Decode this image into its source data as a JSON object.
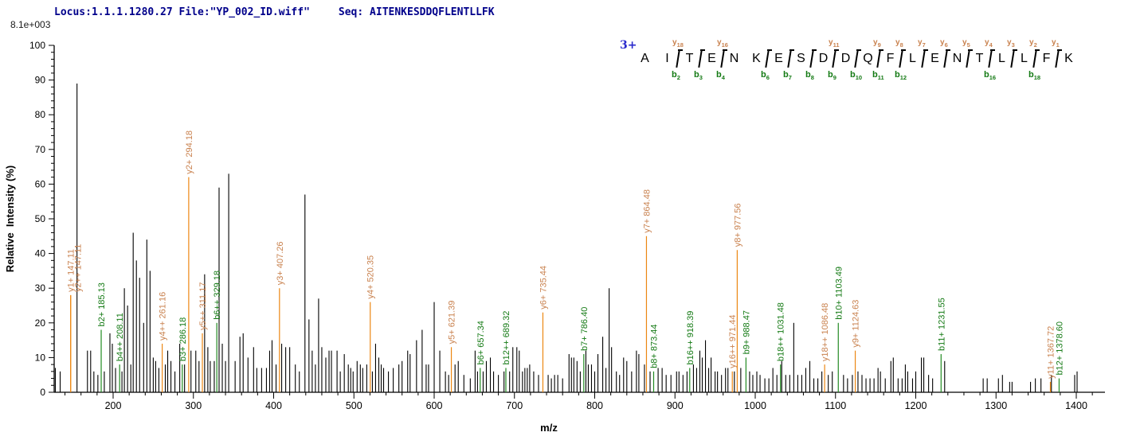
{
  "header": {
    "locus": "Locus:1.1.1.1280.27 File:\"YP_002_ID.wiff\"",
    "seq": "Seq: AITENKESDDQFLENTLLFK",
    "max_intensity": "8.1e+003"
  },
  "colors": {
    "peak_black": "#000000",
    "y_peak": "#ec8713",
    "y_label": "#c9824f",
    "b_peak": "#228b22",
    "b_label": "#147a14",
    "header_text": "#00008b",
    "charge_text": "#2828cc",
    "axis": "#000000"
  },
  "sequence": {
    "charge": "3+",
    "residues": [
      "A",
      "I",
      "T",
      "E",
      "N",
      "K",
      "E",
      "S",
      "D",
      "D",
      "Q",
      "F",
      "L",
      "E",
      "N",
      "T",
      "L",
      "L",
      "F",
      "K"
    ],
    "cuts": [
      {
        "after": 2,
        "y": 18,
        "b": 2
      },
      {
        "after": 3,
        "b": 3
      },
      {
        "after": 4,
        "y": 16,
        "b": 4
      },
      {
        "after": 6,
        "b": 6
      },
      {
        "after": 7,
        "b": 7
      },
      {
        "after": 8,
        "b": 8
      },
      {
        "after": 9,
        "y": 11,
        "b": 9
      },
      {
        "after": 10,
        "b": 10
      },
      {
        "after": 11,
        "y": 9,
        "b": 11
      },
      {
        "after": 12,
        "y": 8,
        "b": 12
      },
      {
        "after": 13,
        "y": 7
      },
      {
        "after": 14,
        "y": 6
      },
      {
        "after": 15,
        "y": 5
      },
      {
        "after": 16,
        "y": 4,
        "b": 16
      },
      {
        "after": 17,
        "y": 3
      },
      {
        "after": 18,
        "y": 2,
        "b": 18
      },
      {
        "after": 19,
        "y": 1
      }
    ]
  },
  "chart_data": {
    "type": "bar",
    "subtype": "ms2-stick-spectrum",
    "xlabel": "m/z",
    "ylabel": "Relative  Intensity (%)",
    "xlim": [
      125,
      1436
    ],
    "ylim": [
      0,
      100
    ],
    "x_major_ticks": [
      200,
      300,
      400,
      500,
      600,
      700,
      800,
      900,
      1000,
      1100,
      1200,
      1300,
      1400
    ],
    "x_minor_step": 20,
    "y_major_ticks": [
      0,
      10,
      20,
      30,
      40,
      50,
      60,
      70,
      80,
      90,
      100
    ],
    "y_minor_step": 2,
    "grid": false,
    "base_peak_intensity_label": "8.1e+003",
    "labeled_peaks": [
      {
        "label": "y1+ 147.11",
        "ion": "y1+",
        "mz": 147.11,
        "h": 28,
        "series": "y"
      },
      {
        "label": "y2++ 147.11",
        "ion": "y2++",
        "mz": 147.11,
        "h": 28,
        "series": "y",
        "label_dx": 9
      },
      {
        "label": "b2+ 185.13",
        "ion": "b2+",
        "mz": 185.13,
        "h": 18,
        "series": "b"
      },
      {
        "label": "b4++ 208.11",
        "ion": "b4++",
        "mz": 208.11,
        "h": 8,
        "series": "b"
      },
      {
        "label": "y4++ 261.16",
        "ion": "y4++",
        "mz": 261.16,
        "h": 14,
        "series": "y"
      },
      {
        "label": "b3+ 286.18",
        "ion": "b3+",
        "mz": 286.18,
        "h": 8,
        "series": "b"
      },
      {
        "label": "y2+ 294.18",
        "ion": "y2+",
        "mz": 294.18,
        "h": 62,
        "series": "y"
      },
      {
        "label": "y5++ 311.17",
        "ion": "y5++",
        "mz": 311.17,
        "h": 17,
        "series": "y"
      },
      {
        "label": "b6++ 329.18",
        "ion": "b6++",
        "mz": 329.18,
        "h": 20,
        "series": "b"
      },
      {
        "label": "y3+ 407.26",
        "ion": "y3+",
        "mz": 407.26,
        "h": 30,
        "series": "y"
      },
      {
        "label": "y4+ 520.35",
        "ion": "y4+",
        "mz": 520.35,
        "h": 26,
        "series": "y"
      },
      {
        "label": "y5+ 621.39",
        "ion": "y5+",
        "mz": 621.39,
        "h": 13,
        "series": "y"
      },
      {
        "label": "b6+ 657.34",
        "ion": "b6+",
        "mz": 657.34,
        "h": 7,
        "series": "b"
      },
      {
        "label": "b12++ 689.32",
        "ion": "b12++",
        "mz": 689.32,
        "h": 7,
        "series": "b"
      },
      {
        "label": "y6+ 735.44",
        "ion": "y6+",
        "mz": 735.44,
        "h": 23,
        "series": "y"
      },
      {
        "label": "b7+ 786.40",
        "ion": "b7+",
        "mz": 786.4,
        "h": 11,
        "series": "b"
      },
      {
        "label": "y7+ 864.48",
        "ion": "y7+",
        "mz": 864.48,
        "h": 45,
        "series": "y"
      },
      {
        "label": "b8+ 873.44",
        "ion": "b8+",
        "mz": 873.44,
        "h": 6,
        "series": "b"
      },
      {
        "label": "b16++ 918.39",
        "ion": "b16++",
        "mz": 918.39,
        "h": 7,
        "series": "b"
      },
      {
        "label": "y16++ 971.44",
        "ion": "y16++",
        "mz": 971.44,
        "h": 6,
        "series": "y"
      },
      {
        "label": "y8+ 977.56",
        "ion": "y8+",
        "mz": 977.56,
        "h": 41,
        "series": "y"
      },
      {
        "label": "b9+ 988.47",
        "ion": "b9+",
        "mz": 988.47,
        "h": 10,
        "series": "b"
      },
      {
        "label": "b18++ 1031.48",
        "ion": "b18++",
        "mz": 1031.48,
        "h": 8,
        "series": "b"
      },
      {
        "label": "y18++ 1086.48",
        "ion": "y18++",
        "mz": 1086.48,
        "h": 8,
        "series": "y"
      },
      {
        "label": "b10+ 1103.49",
        "ion": "b10+",
        "mz": 1103.49,
        "h": 20,
        "series": "b"
      },
      {
        "label": "y9+ 1124.63",
        "ion": "y9+",
        "mz": 1124.63,
        "h": 12,
        "series": "y"
      },
      {
        "label": "b11+ 1231.55",
        "ion": "b11+",
        "mz": 1231.55,
        "h": 11,
        "series": "b"
      },
      {
        "label": "y11+ 1367.72",
        "ion": "y11+",
        "mz": 1367.72,
        "h": 3,
        "series": "y"
      },
      {
        "label": "b12+ 1378.60",
        "ion": "b12+",
        "mz": 1378.6,
        "h": 4,
        "series": "b"
      }
    ],
    "unlabeled_peaks": [
      [
        128,
        7
      ],
      [
        134,
        6
      ],
      [
        155,
        89
      ],
      [
        168,
        12
      ],
      [
        172,
        12
      ],
      [
        176,
        6
      ],
      [
        181,
        5
      ],
      [
        189,
        6
      ],
      [
        196,
        17
      ],
      [
        199,
        14
      ],
      [
        203,
        7
      ],
      [
        211,
        6
      ],
      [
        214,
        30
      ],
      [
        218,
        25
      ],
      [
        222,
        8
      ],
      [
        225,
        46
      ],
      [
        229,
        38
      ],
      [
        233,
        33
      ],
      [
        238,
        20
      ],
      [
        242,
        44
      ],
      [
        246,
        35
      ],
      [
        250,
        10
      ],
      [
        253,
        9
      ],
      [
        257,
        7
      ],
      [
        265,
        8
      ],
      [
        268,
        12
      ],
      [
        272,
        9
      ],
      [
        277,
        6
      ],
      [
        283,
        14
      ],
      [
        289,
        8
      ],
      [
        297,
        12
      ],
      [
        303,
        12
      ],
      [
        307,
        9
      ],
      [
        314,
        34
      ],
      [
        318,
        13
      ],
      [
        321,
        9
      ],
      [
        326,
        9
      ],
      [
        332,
        59
      ],
      [
        336,
        14
      ],
      [
        340,
        9
      ],
      [
        344,
        63
      ],
      [
        352,
        9
      ],
      [
        358,
        16
      ],
      [
        362,
        17
      ],
      [
        368,
        10
      ],
      [
        375,
        13
      ],
      [
        379,
        7
      ],
      [
        385,
        7
      ],
      [
        391,
        7
      ],
      [
        395,
        12
      ],
      [
        398,
        15
      ],
      [
        403,
        8
      ],
      [
        410,
        14
      ],
      [
        415,
        13
      ],
      [
        420,
        13
      ],
      [
        427,
        8
      ],
      [
        432,
        6
      ],
      [
        439,
        57
      ],
      [
        444,
        21
      ],
      [
        448,
        12
      ],
      [
        452,
        8
      ],
      [
        456,
        27
      ],
      [
        460,
        13
      ],
      [
        465,
        10
      ],
      [
        469,
        12
      ],
      [
        472,
        12
      ],
      [
        479,
        12
      ],
      [
        483,
        6
      ],
      [
        488,
        11
      ],
      [
        493,
        8
      ],
      [
        496,
        7
      ],
      [
        499,
        6
      ],
      [
        504,
        9
      ],
      [
        508,
        8
      ],
      [
        511,
        7
      ],
      [
        516,
        8
      ],
      [
        523,
        6
      ],
      [
        527,
        14
      ],
      [
        531,
        10
      ],
      [
        534,
        8
      ],
      [
        537,
        7
      ],
      [
        543,
        6
      ],
      [
        549,
        7
      ],
      [
        556,
        8
      ],
      [
        560,
        9
      ],
      [
        567,
        12
      ],
      [
        570,
        11
      ],
      [
        578,
        15
      ],
      [
        585,
        18
      ],
      [
        590,
        8
      ],
      [
        593,
        8
      ],
      [
        600,
        26
      ],
      [
        607,
        12
      ],
      [
        614,
        6
      ],
      [
        618,
        5
      ],
      [
        626,
        8
      ],
      [
        630,
        9
      ],
      [
        637,
        5
      ],
      [
        645,
        4
      ],
      [
        651,
        12
      ],
      [
        654,
        6
      ],
      [
        661,
        6
      ],
      [
        665,
        9
      ],
      [
        670,
        10
      ],
      [
        674,
        6
      ],
      [
        680,
        5
      ],
      [
        687,
        6
      ],
      [
        694,
        6
      ],
      [
        698,
        13
      ],
      [
        703,
        13
      ],
      [
        706,
        12
      ],
      [
        710,
        6
      ],
      [
        713,
        7
      ],
      [
        716,
        7
      ],
      [
        719,
        8
      ],
      [
        724,
        6
      ],
      [
        730,
        5
      ],
      [
        742,
        5
      ],
      [
        746,
        4
      ],
      [
        750,
        5
      ],
      [
        754,
        5
      ],
      [
        760,
        4
      ],
      [
        768,
        11
      ],
      [
        771,
        10
      ],
      [
        774,
        10
      ],
      [
        778,
        9
      ],
      [
        782,
        6
      ],
      [
        789,
        12
      ],
      [
        792,
        8
      ],
      [
        796,
        8
      ],
      [
        800,
        6
      ],
      [
        804,
        11
      ],
      [
        810,
        16
      ],
      [
        814,
        7
      ],
      [
        818,
        30
      ],
      [
        821,
        13
      ],
      [
        827,
        6
      ],
      [
        831,
        5
      ],
      [
        836,
        10
      ],
      [
        840,
        9
      ],
      [
        846,
        6
      ],
      [
        852,
        12
      ],
      [
        855,
        11
      ],
      [
        862,
        8
      ],
      [
        869,
        6
      ],
      [
        879,
        7
      ],
      [
        884,
        7
      ],
      [
        889,
        5
      ],
      [
        895,
        5
      ],
      [
        902,
        6
      ],
      [
        905,
        6
      ],
      [
        910,
        5
      ],
      [
        915,
        6
      ],
      [
        923,
        8
      ],
      [
        927,
        7
      ],
      [
        931,
        12
      ],
      [
        934,
        10
      ],
      [
        938,
        15
      ],
      [
        942,
        7
      ],
      [
        945,
        10
      ],
      [
        950,
        6
      ],
      [
        953,
        6
      ],
      [
        958,
        5
      ],
      [
        963,
        7
      ],
      [
        966,
        7
      ],
      [
        974,
        6
      ],
      [
        982,
        7
      ],
      [
        993,
        6
      ],
      [
        997,
        5
      ],
      [
        1002,
        6
      ],
      [
        1006,
        5
      ],
      [
        1012,
        4
      ],
      [
        1017,
        4
      ],
      [
        1022,
        7
      ],
      [
        1027,
        5
      ],
      [
        1033,
        9
      ],
      [
        1038,
        5
      ],
      [
        1043,
        5
      ],
      [
        1048,
        20
      ],
      [
        1053,
        5
      ],
      [
        1058,
        5
      ],
      [
        1063,
        7
      ],
      [
        1068,
        9
      ],
      [
        1073,
        4
      ],
      [
        1078,
        4
      ],
      [
        1083,
        6
      ],
      [
        1091,
        5
      ],
      [
        1096,
        6
      ],
      [
        1110,
        5
      ],
      [
        1115,
        4
      ],
      [
        1121,
        5
      ],
      [
        1128,
        6
      ],
      [
        1133,
        5
      ],
      [
        1138,
        4
      ],
      [
        1143,
        4
      ],
      [
        1148,
        4
      ],
      [
        1153,
        7
      ],
      [
        1156,
        6
      ],
      [
        1162,
        4
      ],
      [
        1169,
        9
      ],
      [
        1172,
        10
      ],
      [
        1178,
        4
      ],
      [
        1183,
        4
      ],
      [
        1187,
        8
      ],
      [
        1190,
        6
      ],
      [
        1196,
        4
      ],
      [
        1200,
        6
      ],
      [
        1207,
        10
      ],
      [
        1210,
        10
      ],
      [
        1216,
        5
      ],
      [
        1221,
        4
      ],
      [
        1236,
        9
      ],
      [
        1284,
        4
      ],
      [
        1289,
        4
      ],
      [
        1303,
        4
      ],
      [
        1308,
        5
      ],
      [
        1317,
        3
      ],
      [
        1320,
        3
      ],
      [
        1343,
        3
      ],
      [
        1349,
        4
      ],
      [
        1356,
        4
      ],
      [
        1369,
        5
      ],
      [
        1398,
        5
      ],
      [
        1401,
        6
      ]
    ]
  }
}
